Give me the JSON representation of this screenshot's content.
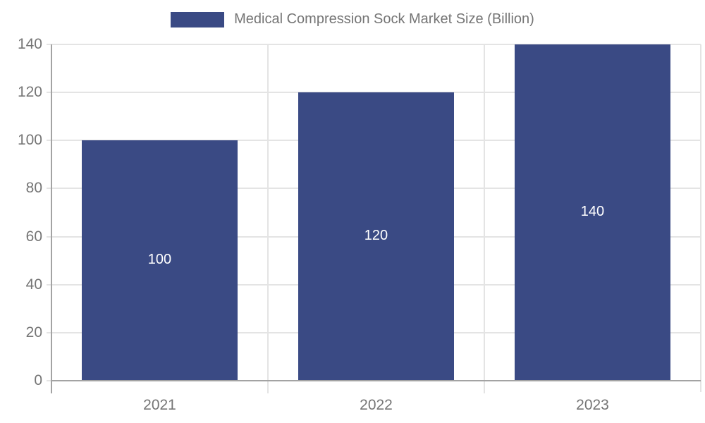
{
  "chart_data": {
    "type": "bar",
    "title": "Medical Compression Sock Market Size (Billion)",
    "legend": {
      "label": "Medical Compression Sock Market Size (Billion)",
      "position": "top"
    },
    "categories": [
      "2021",
      "2022",
      "2023"
    ],
    "values": [
      100,
      120,
      140
    ],
    "bar_labels": [
      "100",
      "120",
      "140"
    ],
    "xlabel": "",
    "ylabel": "",
    "ylim": [
      0,
      140
    ],
    "ytick_step": 20,
    "ytick_labels": [
      "0",
      "20",
      "40",
      "60",
      "80",
      "100",
      "120",
      "140"
    ],
    "grid": true,
    "colors": {
      "bar": "#3A4A84",
      "bar_label_text": "#FFFFFF",
      "axis_text": "#757575",
      "axis_line": "#A3A3A3",
      "gridline": "#E4E4E4"
    }
  }
}
